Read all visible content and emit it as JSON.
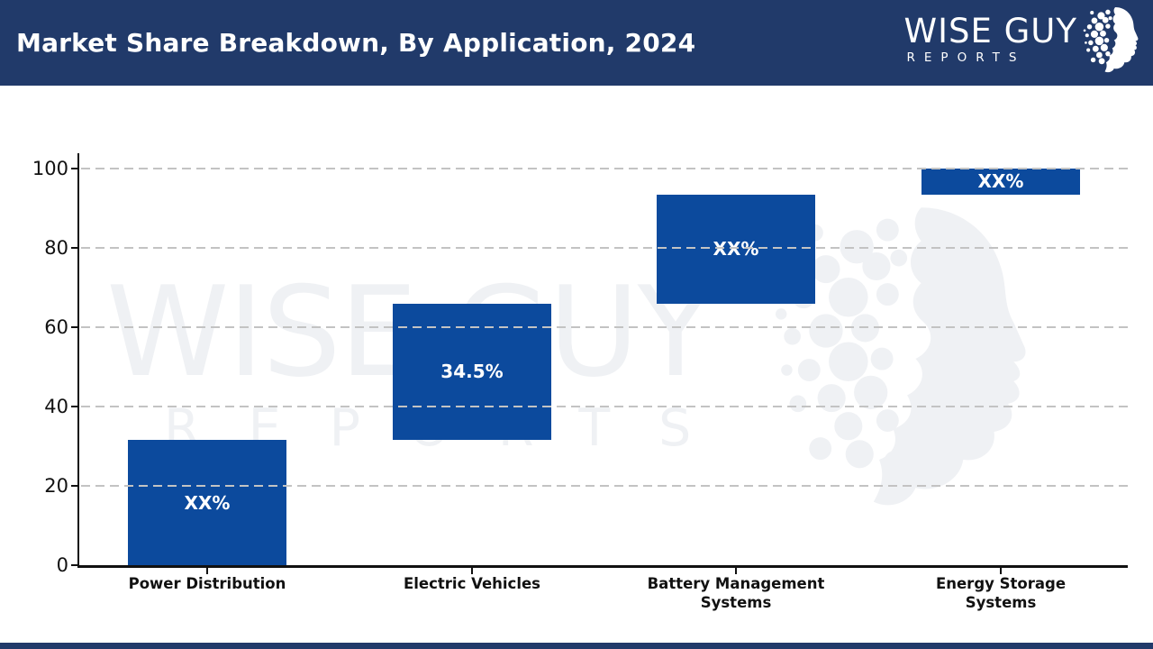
{
  "header": {
    "title": "Market Share Breakdown, By Application, 2024",
    "logo": {
      "line1": "WISE GUY",
      "line2": "REPORTS"
    }
  },
  "watermark": {
    "line1": "WISE GUY",
    "line2": "REPORTS"
  },
  "chart_data": {
    "type": "bar",
    "subtype": "stacked-percentage-waterfall",
    "title": "Market Share Breakdown, By Application, 2024",
    "categories": [
      "Power Distribution",
      "Electric Vehicles",
      "Battery Management Systems",
      "Energy Storage Systems"
    ],
    "segments": [
      {
        "category": "Power Distribution",
        "start": 0,
        "end": 31.5,
        "label": "XX%"
      },
      {
        "category": "Electric Vehicles",
        "start": 31.5,
        "end": 66,
        "label": "34.5%",
        "value": 34.5
      },
      {
        "category": "Battery Management Systems",
        "start": 66,
        "end": 93.5,
        "label": "XX%"
      },
      {
        "category": "Energy Storage Systems",
        "start": 93.5,
        "end": 100,
        "label": "XX%"
      }
    ],
    "xlabel": "",
    "ylabel": "",
    "ylim": [
      0,
      100
    ],
    "yticks": [
      0,
      20,
      40,
      60,
      80,
      100
    ],
    "grid": "horizontal-dashed",
    "legend": "none",
    "bar_color": "#0C4A9D",
    "bar_label_color": "#ffffff"
  },
  "colors": {
    "header_navy": "#213A6A",
    "footer_navy": "#213A6A",
    "bar_blue": "#0C4A9D",
    "grid_gray": "#C6C6C6",
    "watermark_gray": "#EFF1F4",
    "text_black": "#111111"
  }
}
